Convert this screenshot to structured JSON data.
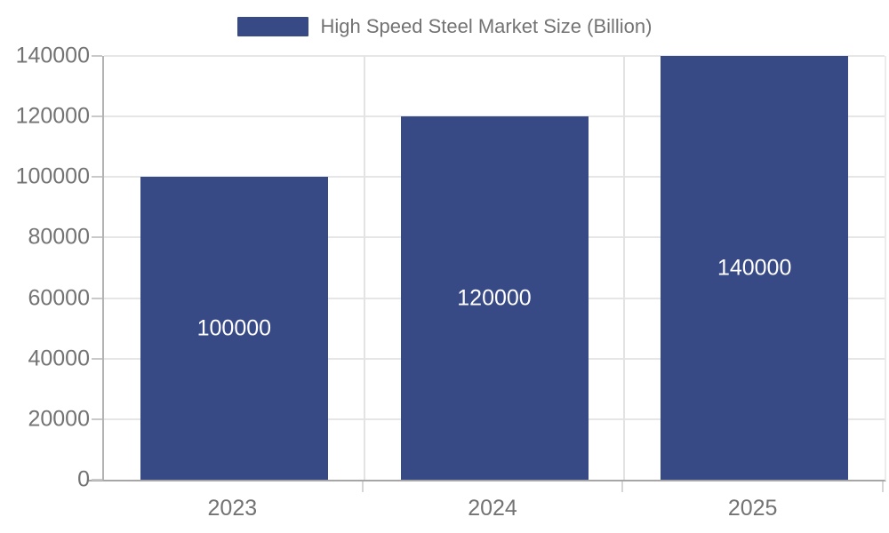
{
  "legend": {
    "label": "High Speed Steel Market Size (Billion)"
  },
  "chart_data": {
    "type": "bar",
    "title": "High Speed Steel Market Size (Billion)",
    "categories": [
      "2023",
      "2024",
      "2025"
    ],
    "values": [
      100000,
      120000,
      140000
    ],
    "bar_value_labels": [
      "100000",
      "120000",
      "140000"
    ],
    "xlabel": "",
    "ylabel": "",
    "ylim": [
      0,
      140000
    ],
    "yticks": [
      0,
      20000,
      40000,
      60000,
      80000,
      100000,
      120000,
      140000
    ],
    "ytick_labels": [
      "0",
      "20000",
      "40000",
      "60000",
      "80000",
      "100000",
      "120000",
      "140000"
    ],
    "grid": true,
    "legend_position": "top"
  },
  "colors": {
    "bar": "#384A86",
    "bar_label": "#ffffff",
    "text": "#737373",
    "grid_line": "#e6e6e6",
    "axis_line": "#a6a6a6",
    "background": "#ffffff"
  }
}
